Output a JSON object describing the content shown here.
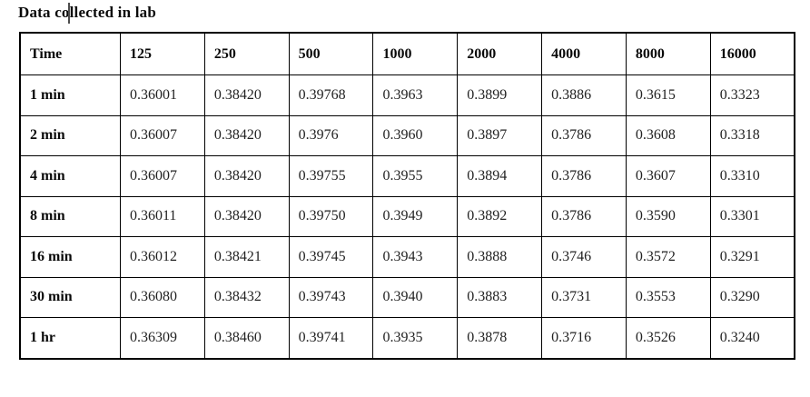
{
  "title": "Data collected in lab",
  "table": {
    "columns": [
      "Time",
      "125",
      "250",
      "500",
      "1000",
      "2000",
      "4000",
      "8000",
      "16000"
    ],
    "rows": [
      {
        "label": "1 min",
        "values": [
          "0.36001",
          "0.38420",
          "0.39768",
          "0.3963",
          "0.3899",
          "0.3886",
          "0.3615",
          "0.3323"
        ]
      },
      {
        "label": "2 min",
        "values": [
          "0.36007",
          "0.38420",
          "0.3976",
          "0.3960",
          "0.3897",
          "0.3786",
          "0.3608",
          "0.3318"
        ]
      },
      {
        "label": "4 min",
        "values": [
          "0.36007",
          "0.38420",
          "0.39755",
          "0.3955",
          "0.3894",
          "0.3786",
          "0.3607",
          "0.3310"
        ]
      },
      {
        "label": "8 min",
        "values": [
          "0.36011",
          "0.38420",
          "0.39750",
          "0.3949",
          "0.3892",
          "0.3786",
          "0.3590",
          "0.3301"
        ]
      },
      {
        "label": "16 min",
        "values": [
          "0.36012",
          "0.38421",
          "0.39745",
          "0.3943",
          "0.3888",
          "0.3746",
          "0.3572",
          "0.3291"
        ]
      },
      {
        "label": "30 min",
        "values": [
          "0.36080",
          "0.38432",
          "0.39743",
          "0.3940",
          "0.3883",
          "0.3731",
          "0.3553",
          "0.3290"
        ]
      },
      {
        "label": "1 hr",
        "values": [
          "0.36309",
          "0.38460",
          "0.39741",
          "0.3935",
          "0.3878",
          "0.3716",
          "0.3526",
          "0.3240"
        ]
      }
    ]
  },
  "colors": {
    "text": "#0a0a0a",
    "cell_text": "#222222",
    "border": "#000000",
    "background": "#ffffff",
    "caret": "#4d4d4d"
  }
}
